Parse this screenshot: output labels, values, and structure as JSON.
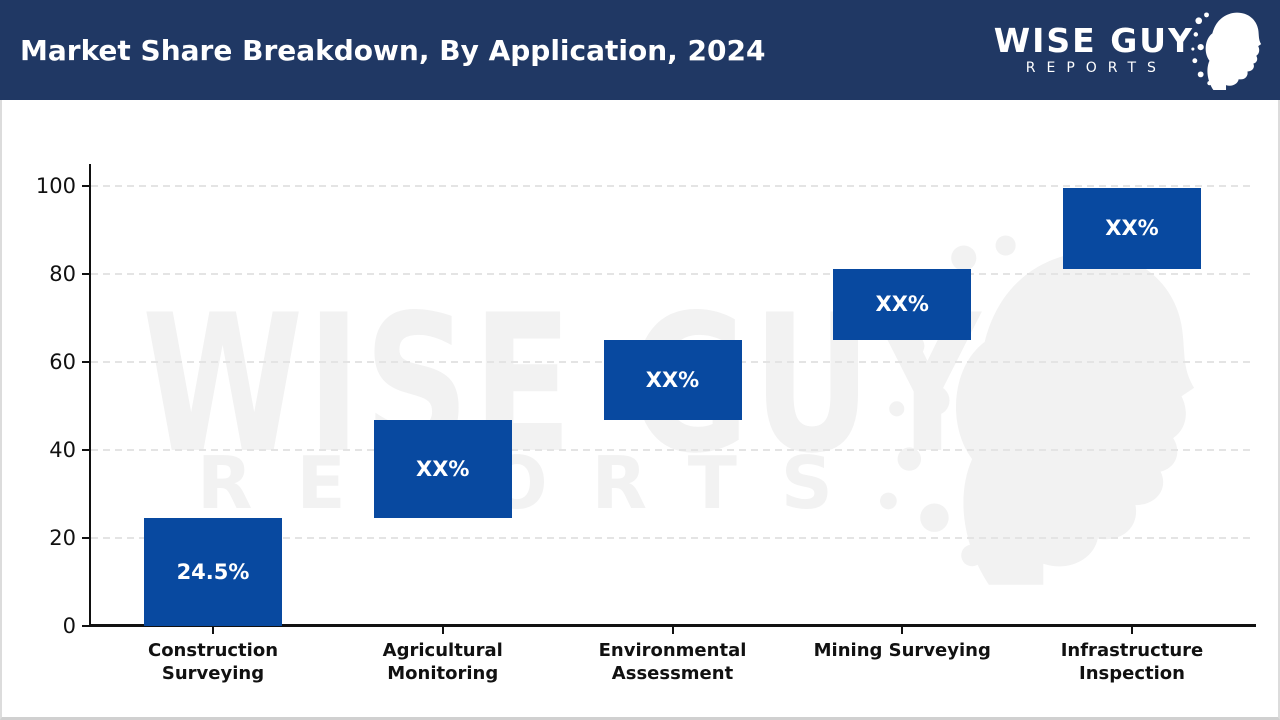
{
  "header": {
    "title": "Market Share Breakdown, By Application, 2024",
    "logo": {
      "main": "WISE GUY",
      "sub": "REPORTS"
    }
  },
  "watermark": {
    "main": "WISE GUY",
    "sub": "REPORTS"
  },
  "chart_data": {
    "type": "bar",
    "subtype": "waterfall-floating-bars",
    "title": "Market Share Breakdown, By Application, 2024",
    "xlabel": "",
    "ylabel": "",
    "ylim": [
      0,
      105
    ],
    "yticks": [
      0,
      20,
      40,
      60,
      80,
      100
    ],
    "grid": "horizontal-dashed",
    "legend": "none",
    "bar_color": "#0849a0",
    "value_label_color": "#ffffff",
    "categories": [
      "Construction\nSurveying",
      "Agricultural\nMonitoring",
      "Environmental\nAssessment",
      "Mining Surveying",
      "Infrastructure\nInspection"
    ],
    "segments": [
      {
        "start": 0,
        "end": 24.5,
        "label": "24.5%"
      },
      {
        "start": 24.5,
        "end": 46.8,
        "label": "XX%"
      },
      {
        "start": 46.8,
        "end": 65.1,
        "label": "XX%"
      },
      {
        "start": 65.1,
        "end": 81.2,
        "label": "XX%"
      },
      {
        "start": 81.2,
        "end": 99.6,
        "label": "XX%"
      }
    ]
  },
  "colors": {
    "header_bg": "#203864",
    "bar_blue": "#0849a0",
    "grid_gray": "#e4e4e4",
    "axis_black": "#111111",
    "watermark_gray": "#f2f2f2",
    "border_gray": "#dcdcdc"
  }
}
